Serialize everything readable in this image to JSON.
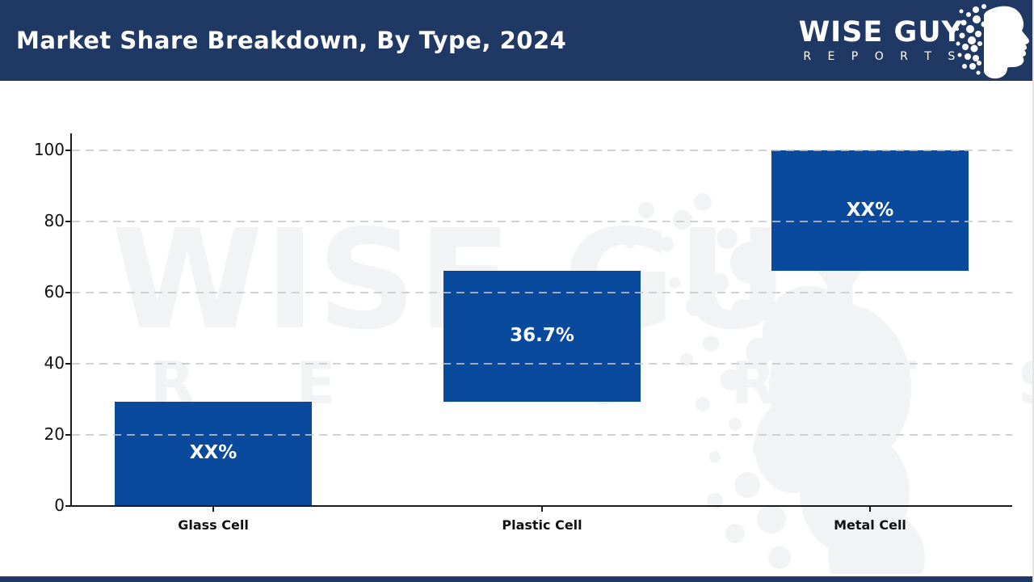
{
  "header": {
    "title": "Market Share Breakdown, By Type, 2024",
    "logo": {
      "primary": "WISE GUY",
      "secondary": "R E P O R T S"
    }
  },
  "watermark": {
    "primary": "WISE GUY",
    "secondary": "R E P O R T S"
  },
  "chart_data": {
    "type": "bar",
    "subtype": "waterfall-floating-bars",
    "title": "Market Share Breakdown, By Type, 2024",
    "categories": [
      "Glass Cell",
      "Plastic Cell",
      "Metal Cell"
    ],
    "segments": [
      {
        "category": "Glass Cell",
        "start": 0,
        "end": 29.3,
        "label": "XX%"
      },
      {
        "category": "Plastic Cell",
        "start": 29.3,
        "end": 66,
        "label": "36.7%"
      },
      {
        "category": "Metal Cell",
        "start": 66,
        "end": 100,
        "label": "XX%"
      }
    ],
    "xlabel": "",
    "ylabel": "",
    "ylim": [
      0,
      100
    ],
    "yticks": [
      0,
      20,
      40,
      60,
      80,
      100
    ],
    "grid": "horizontal-dashed",
    "legend": "none",
    "bar_color": "#0a4a9c",
    "bar_label_color": "#ffffff"
  },
  "colors": {
    "header_bg": "#203864",
    "footer_bg": "#203864",
    "bar": "#0a4a9c",
    "axis": "#1a1a1a",
    "grid": "#c6c6c6",
    "watermark": "#f2f3f5"
  }
}
